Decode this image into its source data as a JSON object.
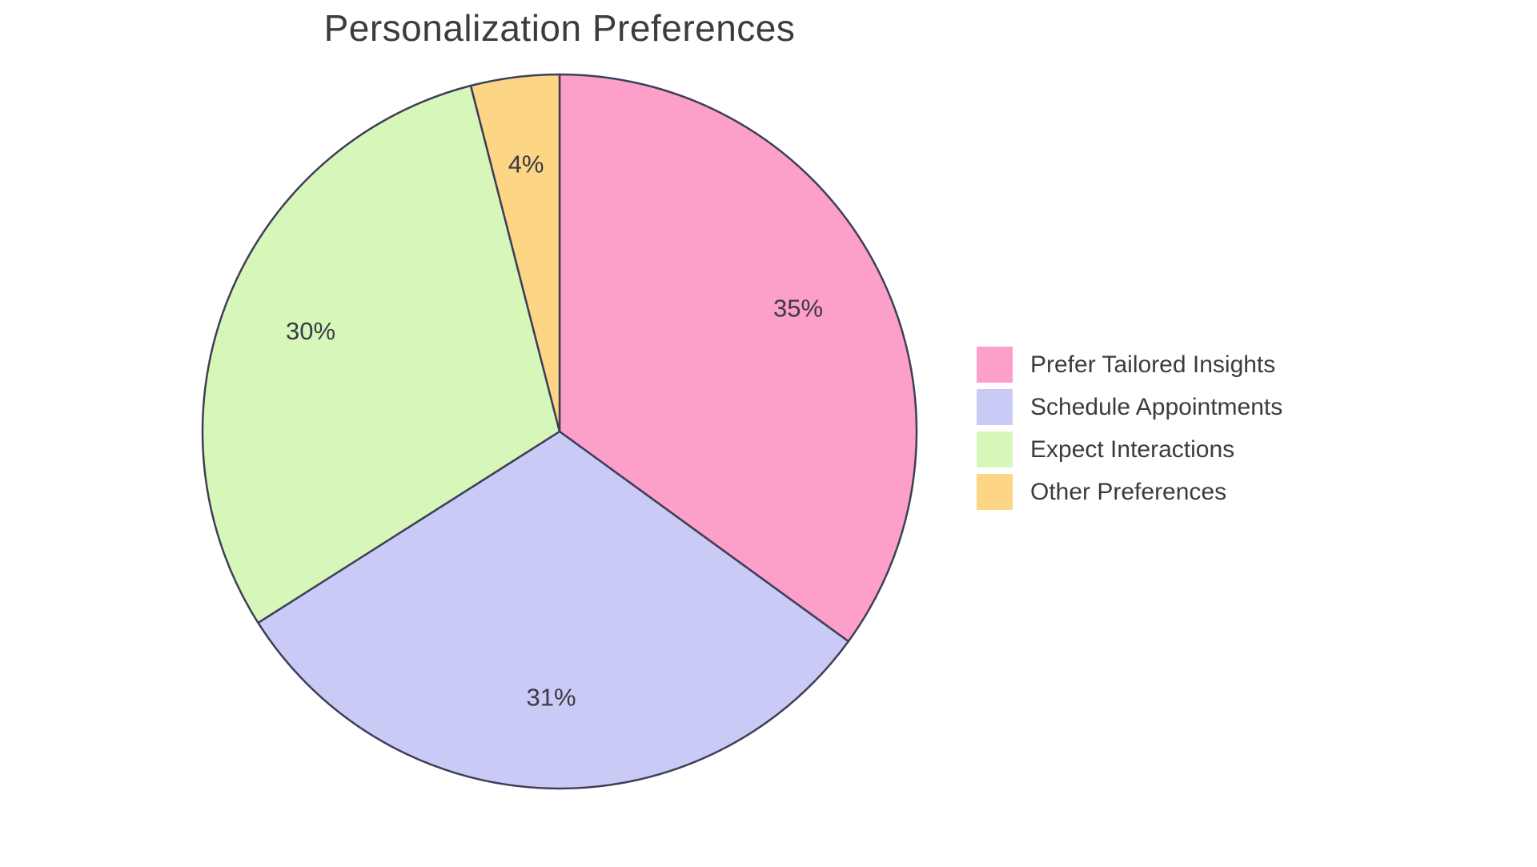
{
  "title": "Personalization Preferences",
  "chart_data": {
    "type": "pie",
    "title": "Personalization Preferences",
    "start_angle_deg": 0,
    "direction": "clockwise",
    "legend_position": "right",
    "background_color": "#FFFFFF",
    "title_color": "#3C3C3C",
    "slice_stroke_color": "#3E3E58",
    "slice_stroke_width": 2.5,
    "label_color": "#3A3A45",
    "legend_text_color": "#3C3C3C",
    "segments": [
      {
        "label": "Prefer Tailored Insights",
        "value": 35,
        "percent_label": "35%",
        "color": "#FC9FC9"
      },
      {
        "label": "Schedule Appointments",
        "value": 31,
        "percent_label": "31%",
        "color": "#CACAF6"
      },
      {
        "label": "Expect Interactions",
        "value": 30,
        "percent_label": "30%",
        "color": "#D7F7BA"
      },
      {
        "label": "Other Preferences",
        "value": 4,
        "percent_label": "4%",
        "color": "#FCD585"
      }
    ]
  }
}
